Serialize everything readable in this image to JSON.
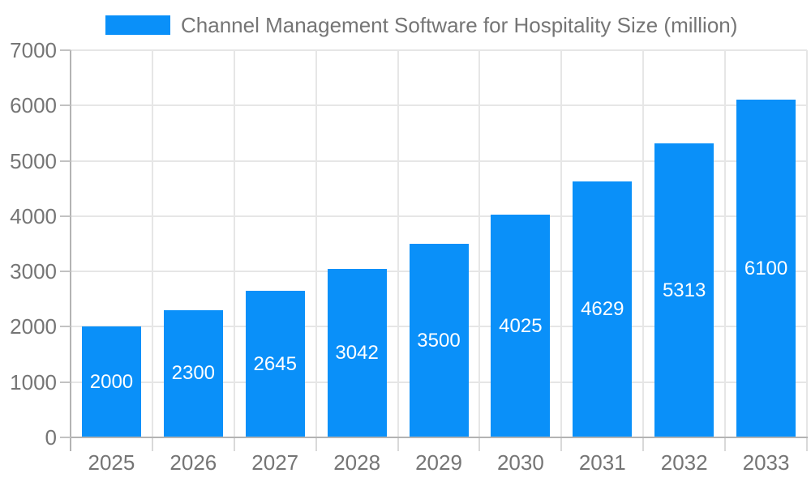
{
  "legend": {
    "label": "Channel Management Software for Hospitality Size (million)"
  },
  "colors": {
    "bar": "#0a90f9",
    "axis_text": "#757575",
    "value_label_text": "#ffffff",
    "gridline": "#e6e6e6",
    "axis_line": "#b3b3b3"
  },
  "chart_data": {
    "type": "bar",
    "title": "Channel Management Software for Hospitality Size (million)",
    "series": [
      {
        "name": "Channel Management Software for Hospitality Size (million)",
        "values": [
          2000,
          2300,
          2645,
          3042,
          3500,
          4025,
          4629,
          5313,
          6100
        ]
      }
    ],
    "categories": [
      "2025",
      "2026",
      "2027",
      "2028",
      "2029",
      "2030",
      "2031",
      "2032",
      "2033"
    ],
    "xlabel": "",
    "ylabel": "",
    "ylim": [
      0,
      7000
    ],
    "y_ticks": [
      0,
      1000,
      2000,
      3000,
      4000,
      5000,
      6000,
      7000
    ],
    "grid": "on",
    "legend_position": "top",
    "value_labels": "inside-center"
  }
}
